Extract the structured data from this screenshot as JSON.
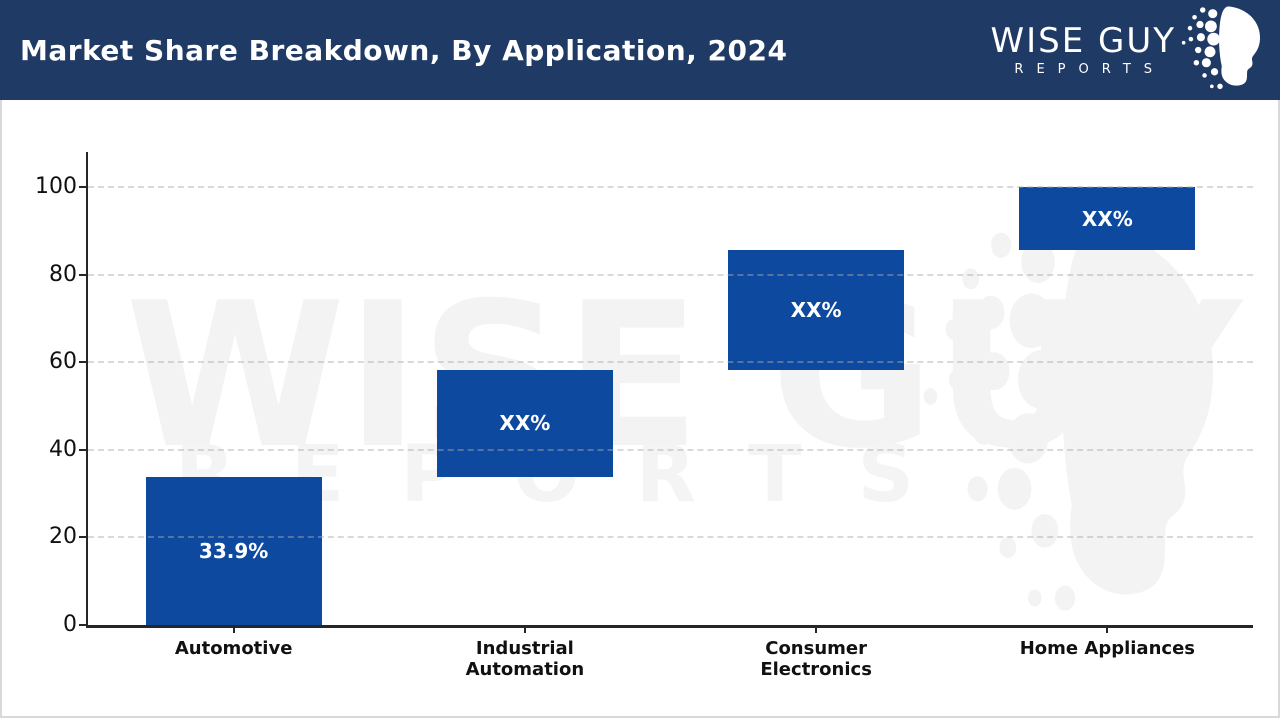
{
  "header": {
    "title": "Market Share Breakdown, By Application, 2024",
    "background": "#203a66",
    "logo": {
      "line1": "WISE GUY",
      "line2": "REPORTS"
    }
  },
  "watermark": {
    "line1": "WISE GUY",
    "line2": "REPORTS"
  },
  "chart_data": {
    "type": "bar",
    "subtype": "waterfall",
    "title": "Market Share Breakdown, By Application, 2024",
    "categories": [
      "Automotive",
      "Industrial\nAutomation",
      "Consumer\nElectronics",
      "Home Appliances"
    ],
    "segments": [
      {
        "category": "Automotive",
        "start": 0,
        "end": 33.9,
        "label": "33.9%"
      },
      {
        "category": "Industrial Automation",
        "start": 33.9,
        "end": 58.2,
        "label": "XX%"
      },
      {
        "category": "Consumer Electronics",
        "start": 58.2,
        "end": 85.6,
        "label": "XX%"
      },
      {
        "category": "Home Appliances",
        "start": 85.6,
        "end": 100.0,
        "label": "XX%"
      }
    ],
    "xlabel": "",
    "ylabel": "",
    "yticks": [
      0,
      20,
      40,
      60,
      80,
      100
    ],
    "ylim": [
      0,
      108
    ],
    "grid": "horizontal-dashed",
    "legend": "none",
    "bar_color": "#0d499e",
    "bar_label_color": "#ffffff",
    "axis_color": "#262626"
  }
}
